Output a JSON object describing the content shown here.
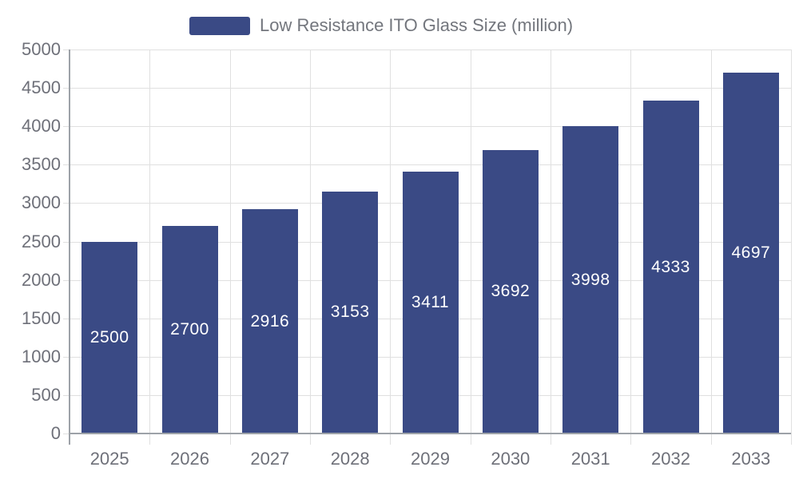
{
  "chart_data": {
    "type": "bar",
    "title": "Low Resistance ITO Glass Size (million)",
    "categories": [
      "2025",
      "2026",
      "2027",
      "2028",
      "2029",
      "2030",
      "2031",
      "2032",
      "2033"
    ],
    "series": [
      {
        "name": "Low Resistance ITO Glass Size (million)",
        "values": [
          2500,
          2700,
          2916,
          3153,
          3411,
          3692,
          3998,
          4333,
          4697
        ]
      }
    ],
    "xlabel": "",
    "ylabel": "",
    "ylim": [
      0,
      5000
    ],
    "ytick_interval": 500,
    "ytick_labels": [
      "0",
      "500",
      "1000",
      "1500",
      "2000",
      "2500",
      "3000",
      "3500",
      "4000",
      "4500",
      "5000"
    ],
    "grid": "both",
    "legend_position": "top-center",
    "colors": {
      "bar_fill": "#3A4A85",
      "bar_value_label": "#FFFFFF",
      "gridline": "#E0E0E0",
      "axis_line": "#9DA2A8",
      "tick_label": "#6E7079",
      "legend_text": "#73767D",
      "background": "#FFFFFF"
    }
  }
}
